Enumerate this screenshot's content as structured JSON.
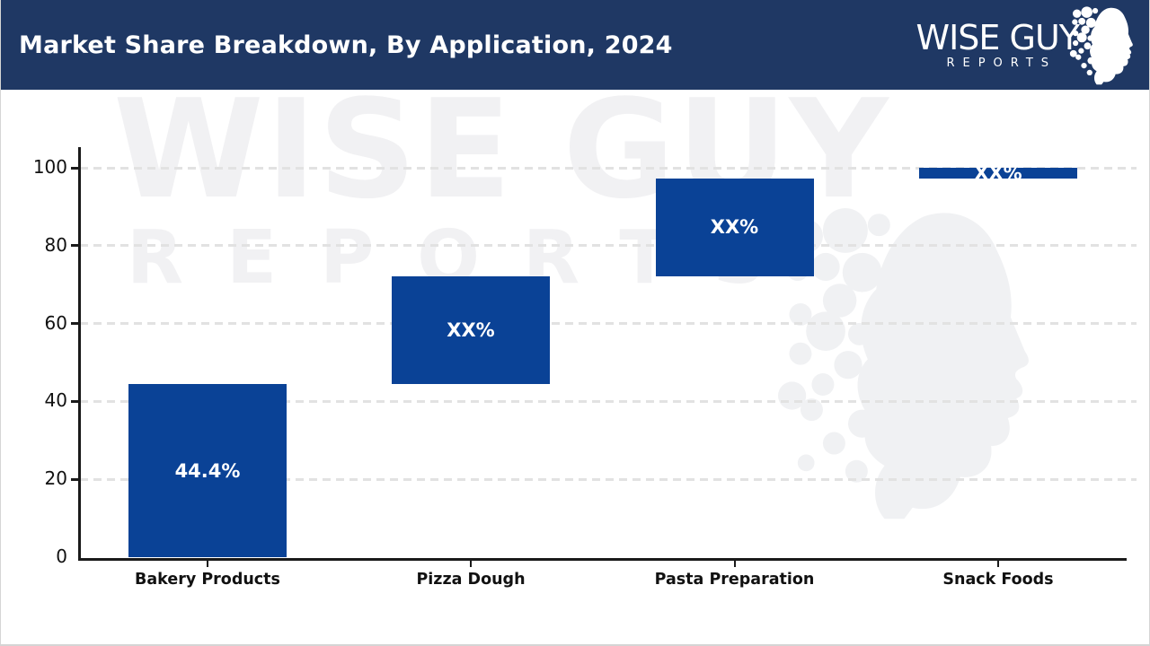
{
  "header": {
    "title": "Market Share Breakdown, By Application, 2024",
    "logo": {
      "line1": "WISE GUY",
      "line2": "REPORTS"
    }
  },
  "watermark": {
    "line1": "WISE GUY",
    "line2": "REPORTS"
  },
  "chart_data": {
    "type": "bar",
    "subtype": "waterfall-stacked-percentage",
    "title": "Market Share Breakdown, By Application, 2024",
    "categories": [
      "Bakery Products",
      "Pizza Dough",
      "Pasta Preparation",
      "Snack Foods"
    ],
    "series": [
      {
        "name": "Bakery Products",
        "start": 0,
        "end": 44.4,
        "label": "44.4%"
      },
      {
        "name": "Pizza Dough",
        "start": 44.4,
        "end": 72.2,
        "label": "XX%"
      },
      {
        "name": "Pasta Preparation",
        "start": 72.2,
        "end": 97.2,
        "label": "XX%"
      },
      {
        "name": "Snack Foods",
        "start": 97.2,
        "end": 100,
        "label": "XX%"
      }
    ],
    "xlabel": "",
    "ylabel": "",
    "yticks": [
      0,
      20,
      40,
      60,
      80,
      100
    ],
    "ylim": [
      0,
      105
    ],
    "grid": true,
    "legend": false,
    "bar_color": "#0a4296",
    "bar_label_color": "#ffffff",
    "grid_color": "#e2e2e2",
    "axis_color": "#1a1a1a"
  },
  "colors": {
    "header_bg": "#1f3864",
    "bar": "#0a4296",
    "watermark": "#f1f1f3",
    "frame_border": "#d5d5d5"
  }
}
